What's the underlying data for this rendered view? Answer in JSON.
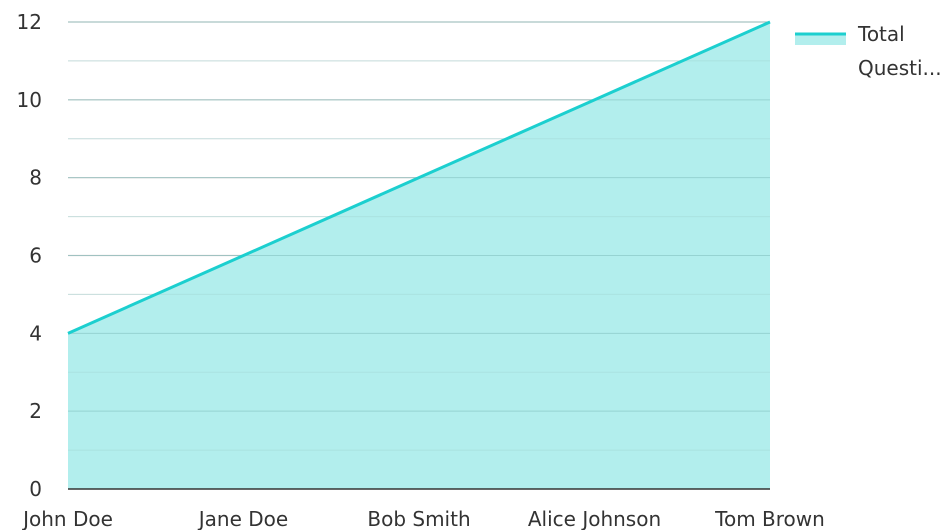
{
  "chart_data": {
    "type": "area",
    "title": "",
    "xlabel": "",
    "ylabel": "",
    "categories": [
      "John Doe",
      "Jane Doe",
      "Bob Smith",
      "Alice Johnson",
      "Tom Brown"
    ],
    "series": [
      {
        "name": "Total Questi...",
        "values": [
          4,
          6,
          8,
          10,
          12
        ],
        "line_color": "#1ccfcf",
        "fill_color": "#b2eeed"
      }
    ],
    "ylim": [
      0,
      12
    ],
    "yticks": [
      0,
      2,
      4,
      6,
      8,
      10,
      12
    ],
    "grid": true,
    "legend": {
      "position": "top-right",
      "lines": [
        "Total",
        "Questi..."
      ]
    }
  }
}
